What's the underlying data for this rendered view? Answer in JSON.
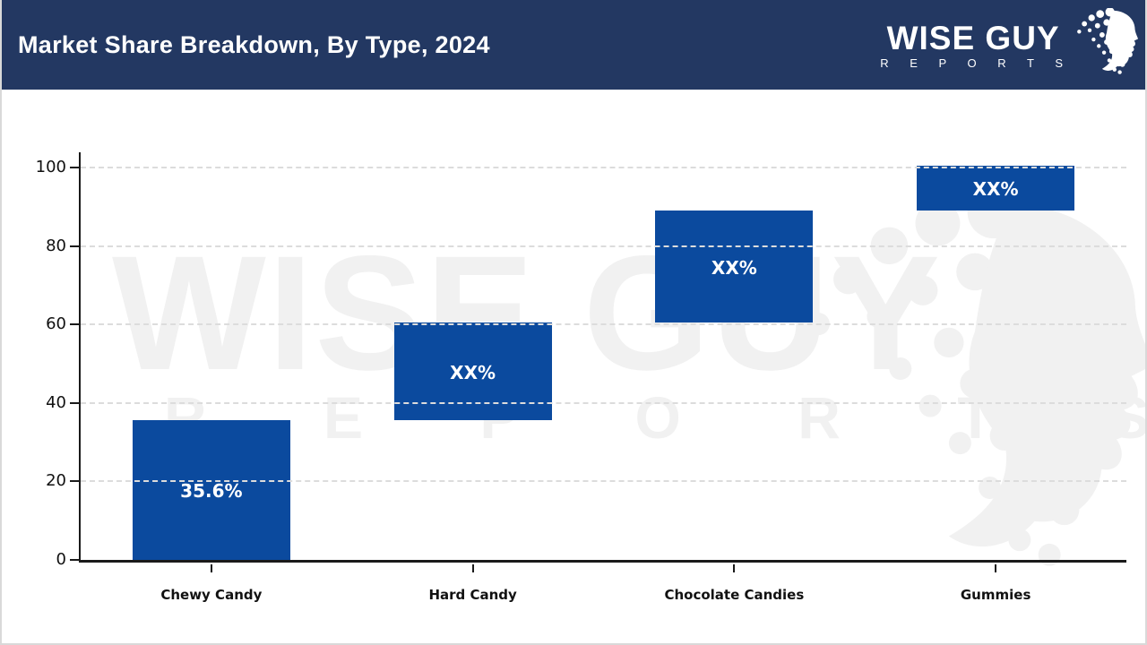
{
  "header": {
    "title": "Market Share Breakdown, By Type, 2024",
    "bg_color": "#233862",
    "logo": {
      "line1": "WISE GUY",
      "line2": "R E P O R T S",
      "face_icon": "face-profile-dots"
    }
  },
  "watermark": {
    "line1": "WISE GUY",
    "line2": "R E P O R T S"
  },
  "colors": {
    "header_navy": "#233862",
    "bar_blue": "#0b4a9e",
    "gridline": "#dcdcdc",
    "axis": "#1a1a1a",
    "watermark": "#f1f1f1",
    "frame_border": "#d9d9d9"
  },
  "chart_data": {
    "type": "bar",
    "subtype": "waterfall-floating-bars",
    "title": "Market Share Breakdown, By Type, 2024",
    "xlabel": "",
    "ylabel": "",
    "categories": [
      "Chewy Candy",
      "Hard Candy",
      "Chocolate Candies",
      "Gummies"
    ],
    "segments": [
      {
        "category": "Chewy Candy",
        "start": 0,
        "end": 35.6,
        "label": "35.6%"
      },
      {
        "category": "Hard Candy",
        "start": 35.6,
        "end": 60.4,
        "label": "XX%"
      },
      {
        "category": "Chocolate Candies",
        "start": 60.4,
        "end": 89.0,
        "label": "XX%"
      },
      {
        "category": "Gummies",
        "start": 89.0,
        "end": 100.4,
        "label": "XX%"
      }
    ],
    "yticks": [
      0,
      20,
      40,
      60,
      80,
      100
    ],
    "ylim": [
      0,
      104
    ],
    "grid": "horizontal-dashed-over-bars",
    "legend": "none",
    "bar_color": "#0b4a9e",
    "bar_label_color": "#ffffff"
  }
}
